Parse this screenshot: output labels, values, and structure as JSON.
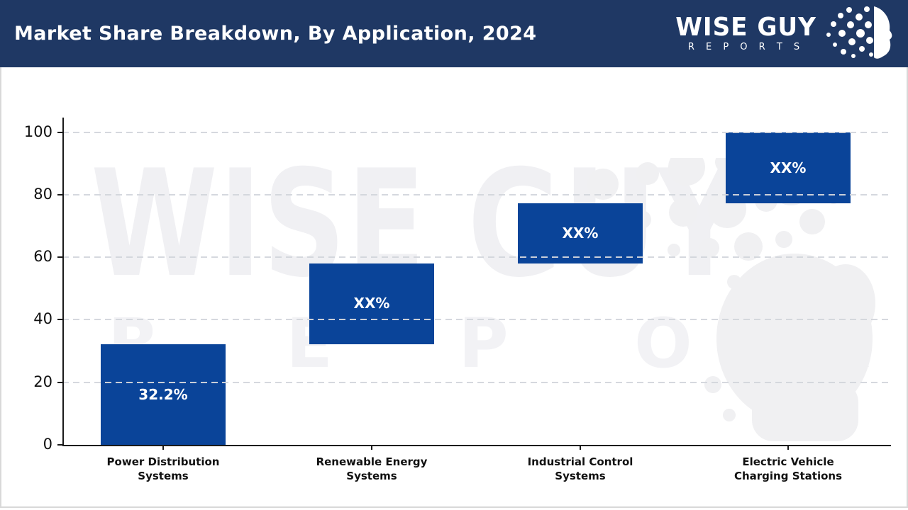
{
  "header": {
    "title": "Market Share Breakdown, By Application, 2024",
    "logo_line1": "WISE GUY",
    "logo_line2": "R E P O R T S"
  },
  "watermark": {
    "line1": "WISE GUY",
    "line2": "R E P O R T S"
  },
  "colors": {
    "header_bg": "#1f3864",
    "bar": "#0a4499",
    "bar_label": "#ffffff",
    "axis": "#1a1a1a",
    "grid_dash": "#d9dce1",
    "tick_label": "#111111",
    "watermark": "#f0f0f3",
    "border": "#d9d9d9"
  },
  "chart_data": {
    "type": "bar",
    "subtype": "waterfall",
    "title": "Market Share Breakdown, By Application, 2024",
    "categories": [
      "Power Distribution Systems",
      "Renewable Energy Systems",
      "Industrial Control Systems",
      "Electric Vehicle Charging Stations"
    ],
    "category_label_lines": [
      [
        "Power Distribution",
        "Systems"
      ],
      [
        "Renewable Energy",
        "Systems"
      ],
      [
        "Industrial Control",
        "Systems"
      ],
      [
        "Electric Vehicle",
        "Charging Stations"
      ]
    ],
    "segments": [
      {
        "category": "Power Distribution Systems",
        "start": 0,
        "end": 32.2,
        "label": "32.2%"
      },
      {
        "category": "Renewable Energy Systems",
        "start": 32.2,
        "end": 58,
        "label": "XX%"
      },
      {
        "category": "Industrial Control Systems",
        "start": 58,
        "end": 77.2,
        "label": "XX%"
      },
      {
        "category": "Electric Vehicle Charging Stations",
        "start": 77.2,
        "end": 100,
        "label": "XX%"
      }
    ],
    "values_shown": [
      "32.2%",
      "XX%",
      "XX%",
      "XX%"
    ],
    "y_ticks": [
      0,
      20,
      40,
      60,
      80,
      100
    ],
    "ylim": [
      0,
      105
    ],
    "xlabel": "",
    "ylabel": "",
    "grid": "dashed-horizontal",
    "legend": "none",
    "bar_color": "#0a4499",
    "bar_label_color": "#ffffff"
  }
}
